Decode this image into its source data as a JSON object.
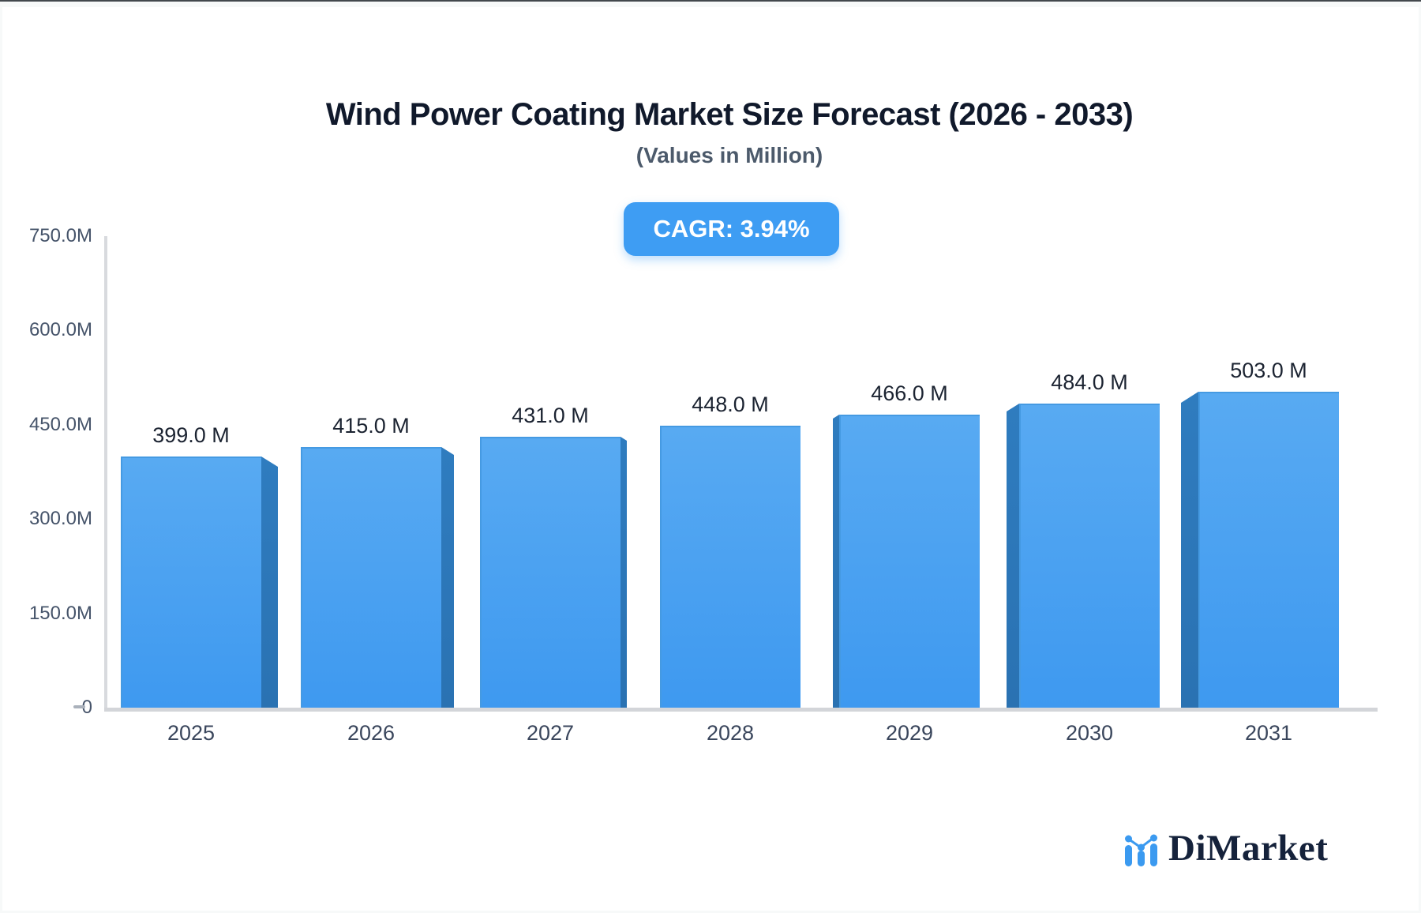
{
  "header": {
    "title": "Wind Power Coating Market Size Forecast (2026 - 2033)",
    "subtitle": "(Values in Million)",
    "cagr_label": "CAGR: 3.94%"
  },
  "chart_data": {
    "type": "bar",
    "title": "Wind Power Coating Market Size Forecast (2026 - 2033)",
    "subtitle": "(Values in Million)",
    "categories": [
      "2025",
      "2026",
      "2027",
      "2028",
      "2029",
      "2030",
      "2031"
    ],
    "values": [
      399,
      415,
      431,
      448,
      466,
      484,
      503
    ],
    "bar_labels": [
      "399.0 M",
      "415.0 M",
      "431.0 M",
      "448.0 M",
      "466.0 M",
      "484.0 M",
      "503.0 M"
    ],
    "unit": "Million",
    "xlabel": "",
    "ylabel": "",
    "ylim": [
      0,
      750
    ],
    "y_ticks": [
      "750.0M",
      "600.0M",
      "450.0M",
      "300.0M",
      "150.0M",
      "0"
    ],
    "y_tick_values": [
      750,
      600,
      450,
      300,
      150,
      0
    ],
    "grid": false,
    "legend": false,
    "style_3d": true,
    "colors": {
      "bar_gradient_top": "#58aaf2",
      "bar_gradient_bottom": "#3e99f0",
      "bar_edge": "#459ae2",
      "bar_side_top": "#2f7cbf",
      "bar_side_bottom": "#2a72b2",
      "axis_line": "#d8dade",
      "tick_text": "#46546a",
      "category_text": "#3a465c",
      "value_text": "#1b2331",
      "badge_bg": "#3e9df3",
      "badge_text": "#ffffff",
      "brand_blue": "#3b9af0",
      "brand_navy": "#15223b"
    }
  },
  "footer": {
    "brand": "DiMarket"
  }
}
